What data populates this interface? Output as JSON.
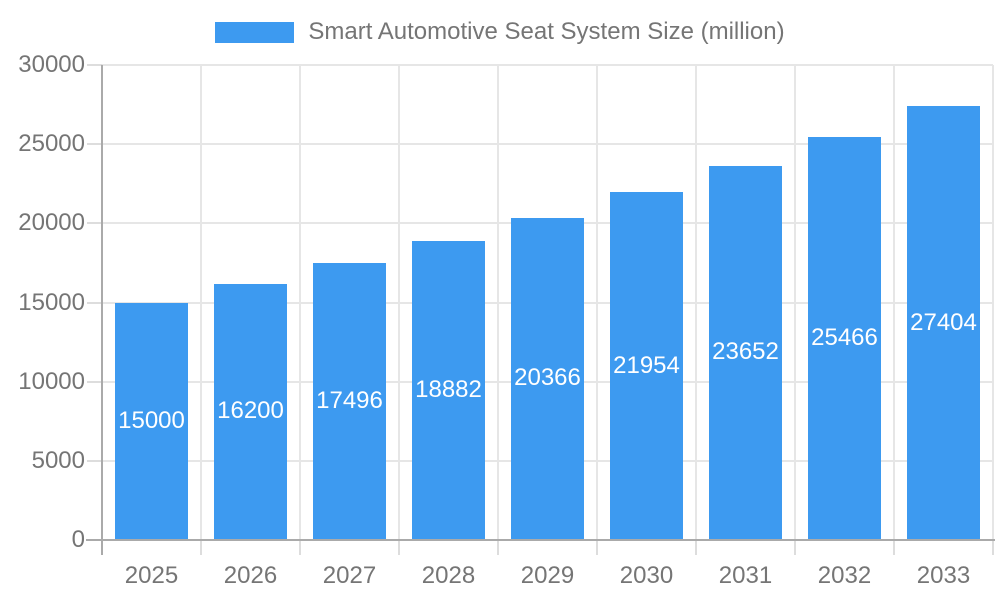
{
  "chart_data": {
    "type": "bar",
    "title": "",
    "legend": "Smart Automotive Seat System Size (million)",
    "categories": [
      "2025",
      "2026",
      "2027",
      "2028",
      "2029",
      "2030",
      "2031",
      "2032",
      "2033"
    ],
    "series": [
      {
        "name": "Smart Automotive Seat System Size (million)",
        "values": [
          15000,
          16200,
          17496,
          18882,
          20366,
          21954,
          23652,
          25466,
          27404
        ]
      }
    ],
    "bar_labels": [
      15000,
      16200,
      17496,
      18882,
      20366,
      21954,
      23652,
      25466,
      27404
    ],
    "xlabel": "",
    "ylabel": "",
    "ylim": [
      0,
      30000
    ],
    "yticks": [
      0,
      5000,
      10000,
      15000,
      20000,
      25000,
      30000
    ],
    "grid": "both",
    "legend_position": "top-center",
    "bar_label_position": "inside-center"
  },
  "colors": {
    "accent": "#3D9AF0",
    "text": "#757575",
    "grid": "#E6E6E6",
    "axis": "#AAAAAA",
    "tick": "#DDDDDD",
    "bar_label": "#FFFFFF",
    "background": "#FFFFFF"
  }
}
